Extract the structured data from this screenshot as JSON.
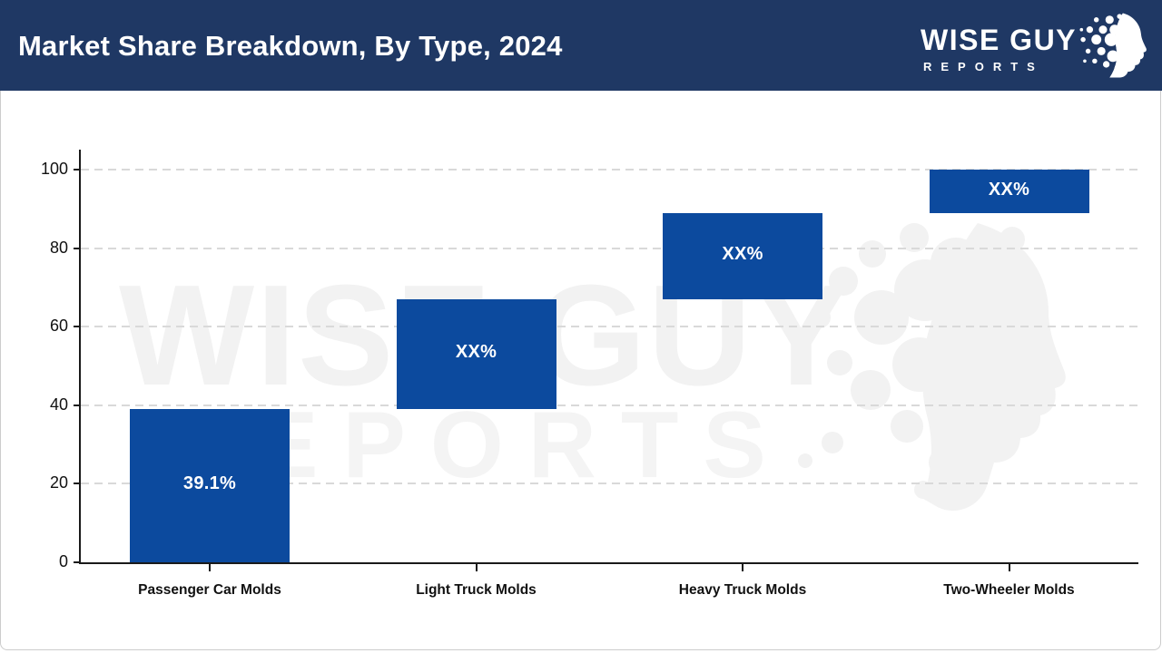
{
  "page": {
    "background": "#ffffff",
    "border_color": "#cccccc"
  },
  "header": {
    "title": "Market Share Breakdown, By Type, 2024",
    "background": "#1f3864",
    "logo": {
      "line1": "WISE GUY",
      "line2": "REPORTS",
      "icon": "head-profile-dots"
    }
  },
  "watermark": {
    "line1": "WISE GUY",
    "line2": "REPORTS",
    "icon": "head-profile-dots"
  },
  "chart_data": {
    "type": "bar",
    "subtype": "waterfall",
    "title": "Market Share Breakdown, By Type, 2024",
    "categories": [
      "Passenger Car Molds",
      "Light Truck Molds",
      "Heavy Truck Molds",
      "Two-Wheeler Molds"
    ],
    "segments": [
      {
        "category": "Passenger Car Molds",
        "start": 0,
        "end": 39.1,
        "label": "39.1%"
      },
      {
        "category": "Light Truck Molds",
        "start": 39.1,
        "end": 67.0,
        "label": "XX%"
      },
      {
        "category": "Heavy Truck Molds",
        "start": 67.0,
        "end": 88.9,
        "label": "XX%"
      },
      {
        "category": "Two-Wheeler Molds",
        "start": 88.9,
        "end": 100.0,
        "label": "XX%"
      }
    ],
    "xlabel": "",
    "ylabel": "",
    "yticks": [
      0,
      20,
      40,
      60,
      80,
      100
    ],
    "ylim": [
      0,
      105
    ],
    "legend": false,
    "grid": "horizontal-dashed",
    "bar_color": "#0c4a9e",
    "bar_label_color": "#ffffff",
    "grid_color": "#d9d9d9",
    "axis_color": "#1a1a1a"
  }
}
